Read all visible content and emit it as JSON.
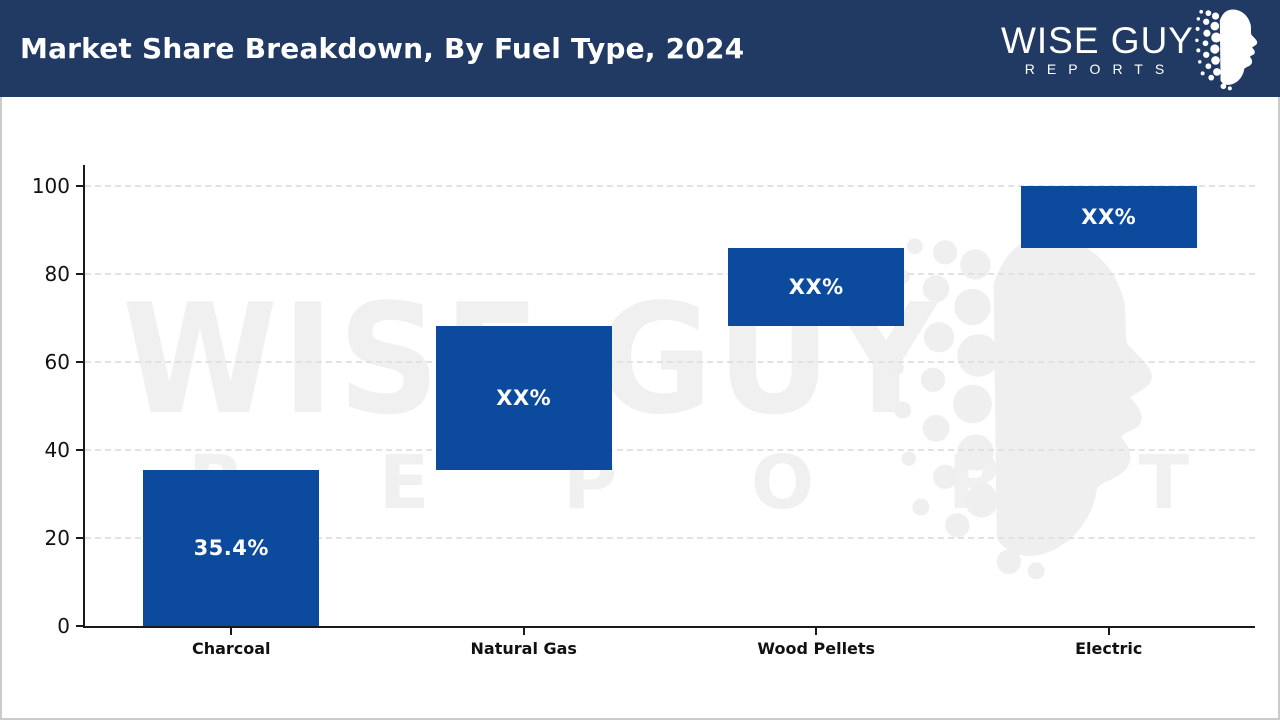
{
  "header": {
    "title": "Market Share Breakdown, By Fuel Type, 2024",
    "background": "#213a63",
    "logo": {
      "primary": "WISE GUY",
      "secondary": "REPORTS",
      "face_icon": "dotted-head-profile"
    }
  },
  "watermark": {
    "line1": "WISE GUY",
    "line2": "R E P O R T S",
    "color": "#f0f0f1",
    "face_icon": "dotted-head-profile"
  },
  "chart_data": {
    "type": "bar",
    "subtype": "waterfall",
    "title": "Market Share Breakdown, By Fuel Type, 2024",
    "categories": [
      "Charcoal",
      "Natural Gas",
      "Wood Pellets",
      "Electric"
    ],
    "segments": [
      {
        "category": "Charcoal",
        "start": 0,
        "end": 35.4,
        "label": "35.4%"
      },
      {
        "category": "Natural Gas",
        "start": 35.4,
        "end": 68.1,
        "label": "XX%"
      },
      {
        "category": "Wood Pellets",
        "start": 68.1,
        "end": 85.9,
        "label": "XX%"
      },
      {
        "category": "Electric",
        "start": 85.9,
        "end": 100,
        "label": "XX%"
      }
    ],
    "y_ticks": [
      0,
      20,
      40,
      60,
      80,
      100
    ],
    "ylim": [
      0,
      104.8
    ],
    "xlabel": "",
    "ylabel": "",
    "grid": "horizontal-dashed",
    "legend": "none",
    "bar_color": "#0c4a9e",
    "bar_label_color": "#ffffff",
    "axis_color": "#1a1a1a"
  }
}
